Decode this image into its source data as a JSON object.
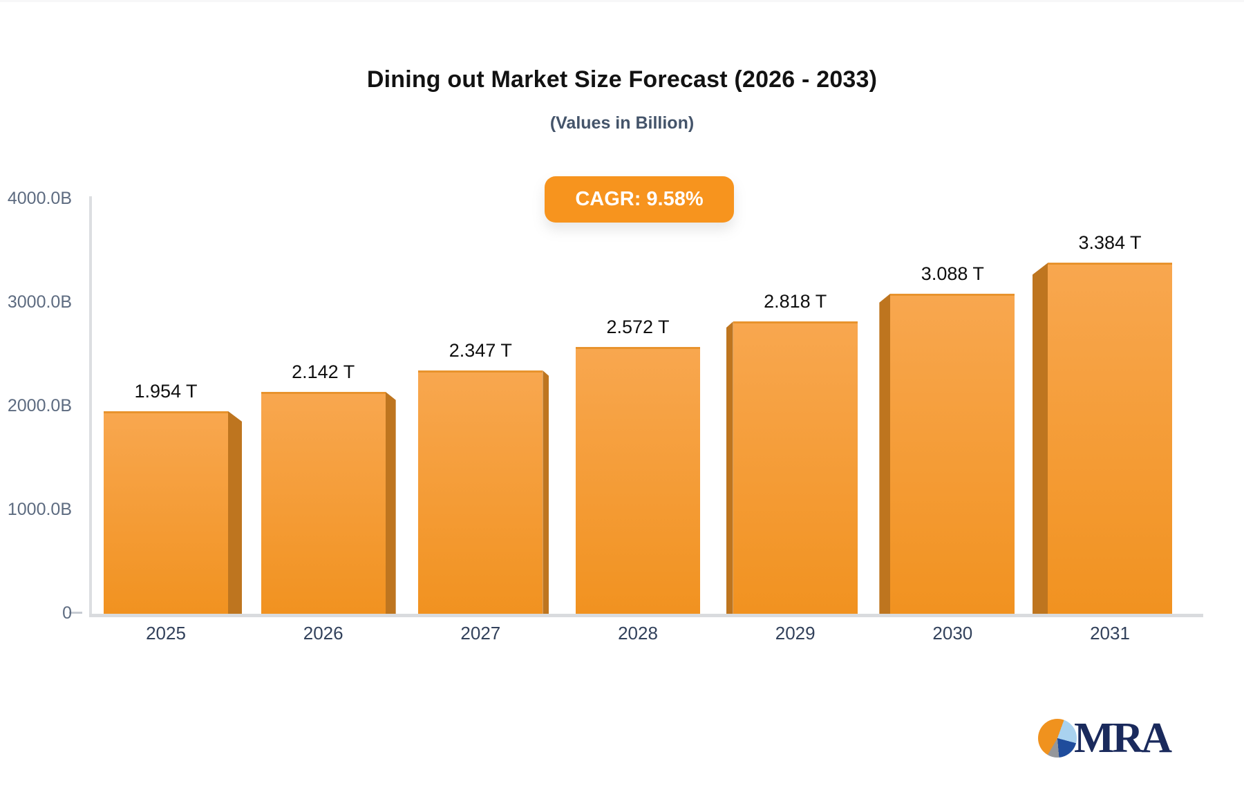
{
  "title": "Dining out Market Size Forecast (2026 - 2033)",
  "subtitle": "(Values in Billion)",
  "badge": {
    "label": "CAGR: 9.58%"
  },
  "logo": {
    "text": "MRA"
  },
  "chart_data": {
    "type": "bar",
    "title": "Dining out Market Size Forecast (2026 - 2033)",
    "subtitle": "(Values in Billion)",
    "unit": "Billion",
    "cagr": "9.58%",
    "categories": [
      "2025",
      "2026",
      "2027",
      "2028",
      "2029",
      "2030",
      "2031"
    ],
    "values": [
      1954,
      2142,
      2347,
      2572,
      2818,
      3088,
      3384
    ],
    "value_labels": [
      "1.954 T",
      "2.142 T",
      "2.347 T",
      "2.572 T",
      "2.818 T",
      "3.088 T",
      "3.384 T"
    ],
    "y_axis": {
      "range": [
        0,
        4000
      ],
      "ticks": [
        {
          "label": "4000.0B",
          "value": 4000
        },
        {
          "label": "3000.0B",
          "value": 3000
        },
        {
          "label": "2000.0B",
          "value": 2000
        },
        {
          "label": "1000.0B",
          "value": 1000
        },
        {
          "label": "0",
          "value": 0
        }
      ]
    },
    "grid": false,
    "legend": null,
    "colors": {
      "bar_top": "#F8A74F",
      "bar_bottom": "#F19220",
      "bar_side": "#BE751F",
      "badge_bg": "#F7941E",
      "axis_line": "#DCDEE1",
      "tick_text": "#5D6B80",
      "category_text": "#32415B",
      "subtitle_text": "#44546A"
    }
  }
}
